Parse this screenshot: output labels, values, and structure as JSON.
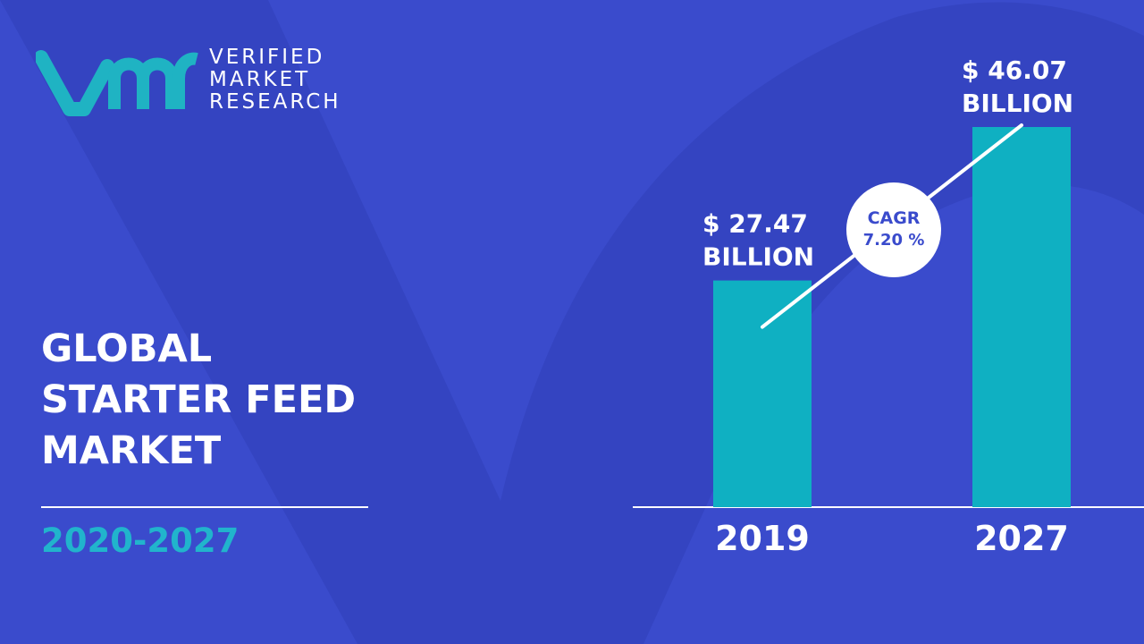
{
  "brand": {
    "name_lines": [
      "VERIFIED",
      "MARKET",
      "RESEARCH"
    ],
    "colors": {
      "logo": "#1fb3c3",
      "background": "#3a4bcc",
      "background_shape": "#2f3eb8"
    }
  },
  "title_lines": [
    "GLOBAL",
    "STARTER FEED",
    "MARKET"
  ],
  "period": "2020-2027",
  "cagr": {
    "label": "CAGR",
    "value": "7.20 %"
  },
  "chart_data": {
    "type": "bar",
    "categories": [
      "2019",
      "2027"
    ],
    "values": [
      27.47,
      46.07
    ],
    "value_labels": [
      [
        "$ 27.47",
        "BILLION"
      ],
      [
        "$ 46.07",
        "BILLION"
      ]
    ],
    "unit": "USD billion",
    "title": "",
    "xlabel": "",
    "ylabel": "",
    "grid": false,
    "bar_color": "#0fb0c2",
    "label_color": "#ffffff"
  }
}
